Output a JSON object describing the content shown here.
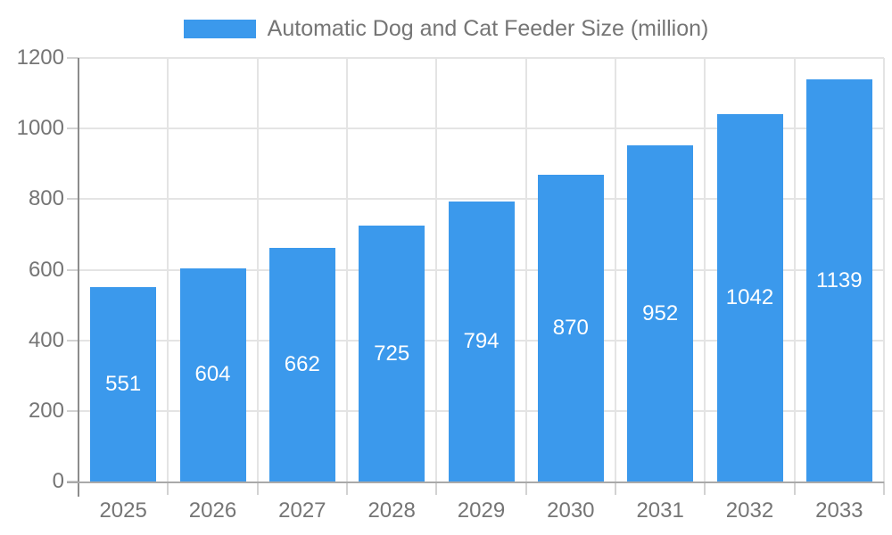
{
  "legend": {
    "label": "Automatic Dog and Cat Feeder Size (million)"
  },
  "colors": {
    "bar": "#3B99EC",
    "bar_label": "#FFFFFF",
    "axis_text": "#757575",
    "grid_line": "#E4E4E4",
    "y_axis_line": "#8C8C8C",
    "x_axis_line": "#A9A9A9",
    "tick": "#D2D2D2",
    "background": "#FFFFFF"
  },
  "chart_data": {
    "type": "bar",
    "title": "Automatic Dog and Cat Feeder Size (million)",
    "categories": [
      "2025",
      "2026",
      "2027",
      "2028",
      "2029",
      "2030",
      "2031",
      "2032",
      "2033"
    ],
    "series": [
      {
        "name": "Automatic Dog and Cat Feeder Size (million)",
        "values": [
          551,
          604,
          662,
          725,
          794,
          870,
          952,
          1042,
          1139
        ]
      }
    ],
    "xlabel": "",
    "ylabel": "",
    "ylim": [
      0,
      1200
    ],
    "y_ticks": [
      0,
      200,
      400,
      600,
      800,
      1000,
      1200
    ],
    "grid": true,
    "legend_position": "top-center",
    "bar_value_labels": "inside-center"
  }
}
